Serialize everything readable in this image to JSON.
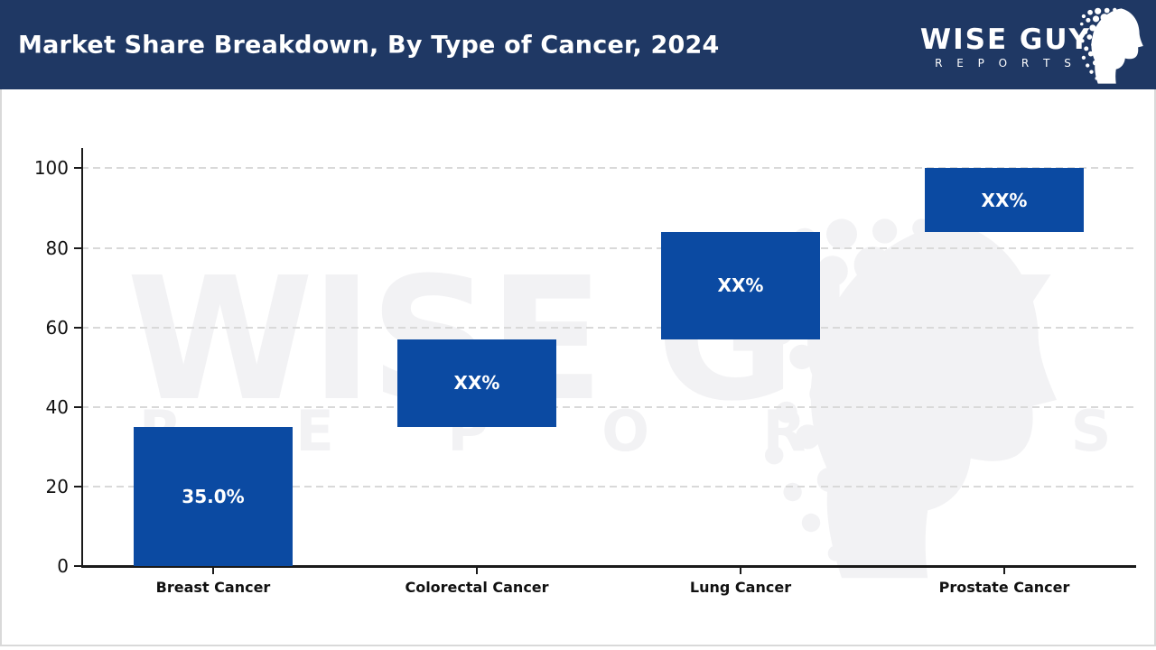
{
  "header": {
    "title": "Market Share Breakdown, By Type of Cancer, 2024",
    "logo": {
      "line1": "WISE GUY",
      "line2": "R E P O R T S"
    }
  },
  "watermark": {
    "line1": "WISE GUY",
    "line2": "R E P O R T S"
  },
  "chart_data": {
    "type": "bar",
    "subtype": "waterfall",
    "title": "Market Share Breakdown, By Type of Cancer, 2024",
    "categories": [
      "Breast Cancer",
      "Colorectal Cancer",
      "Lung Cancer",
      "Prostate Cancer"
    ],
    "segments": [
      {
        "category": "Breast Cancer",
        "start": 0,
        "end": 35,
        "label": "35.0%"
      },
      {
        "category": "Colorectal Cancer",
        "start": 35,
        "end": 57,
        "label": "XX%"
      },
      {
        "category": "Lung Cancer",
        "start": 57,
        "end": 84,
        "label": "XX%"
      },
      {
        "category": "Prostate Cancer",
        "start": 84,
        "end": 100,
        "label": "XX%"
      }
    ],
    "ylim": [
      0,
      100
    ],
    "yticks": [
      0,
      20,
      40,
      60,
      80,
      100
    ],
    "xlabel": "",
    "ylabel": "",
    "grid": "horizontal-dashed",
    "legend": "none",
    "colors": {
      "bar": "#0b4aa2",
      "bar_label": "#ffffff",
      "axis": "#1a1a1a",
      "grid": "#d9d9d9",
      "header_bg": "#1f3864",
      "watermark": "#f2f2f4",
      "title_text": "#ffffff"
    }
  }
}
